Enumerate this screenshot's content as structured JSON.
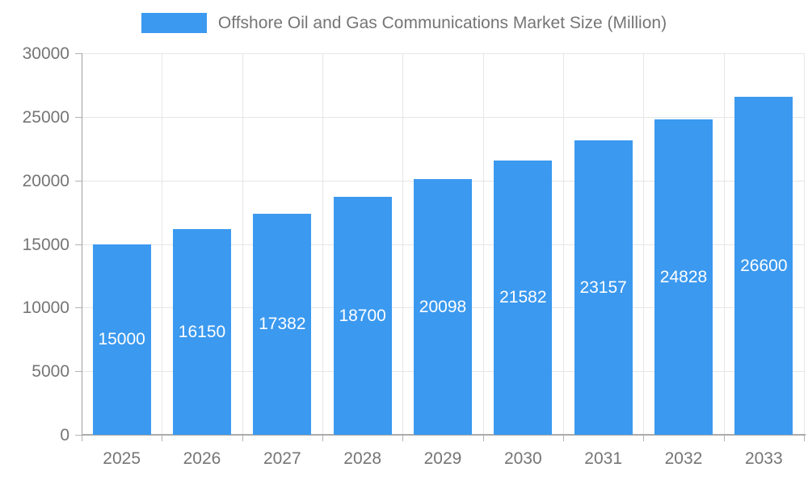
{
  "chart_data": {
    "type": "bar",
    "title": "Offshore Oil and Gas Communications Market Size (Million)",
    "series_name": "Offshore Oil and Gas Communications Market Size (Million)",
    "categories": [
      "2025",
      "2026",
      "2027",
      "2028",
      "2029",
      "2030",
      "2031",
      "2032",
      "2033"
    ],
    "values": [
      15000,
      16150,
      17382,
      18700,
      20098,
      21582,
      23157,
      24828,
      26600
    ],
    "xlabel": "",
    "ylabel": "",
    "ylim": [
      0,
      30000
    ],
    "y_ticks": [
      0,
      5000,
      10000,
      15000,
      20000,
      25000,
      30000
    ],
    "grid": true,
    "legend_position": "top",
    "bar_label_position": "inside-center",
    "colors": {
      "bar": "#3b99ef",
      "bar_label": "#ffffff",
      "axis_text": "#757575",
      "grid_line": "#e6e6e6",
      "axis_line": "#a6a6a6",
      "tick_line": "#b3b3b3"
    }
  }
}
